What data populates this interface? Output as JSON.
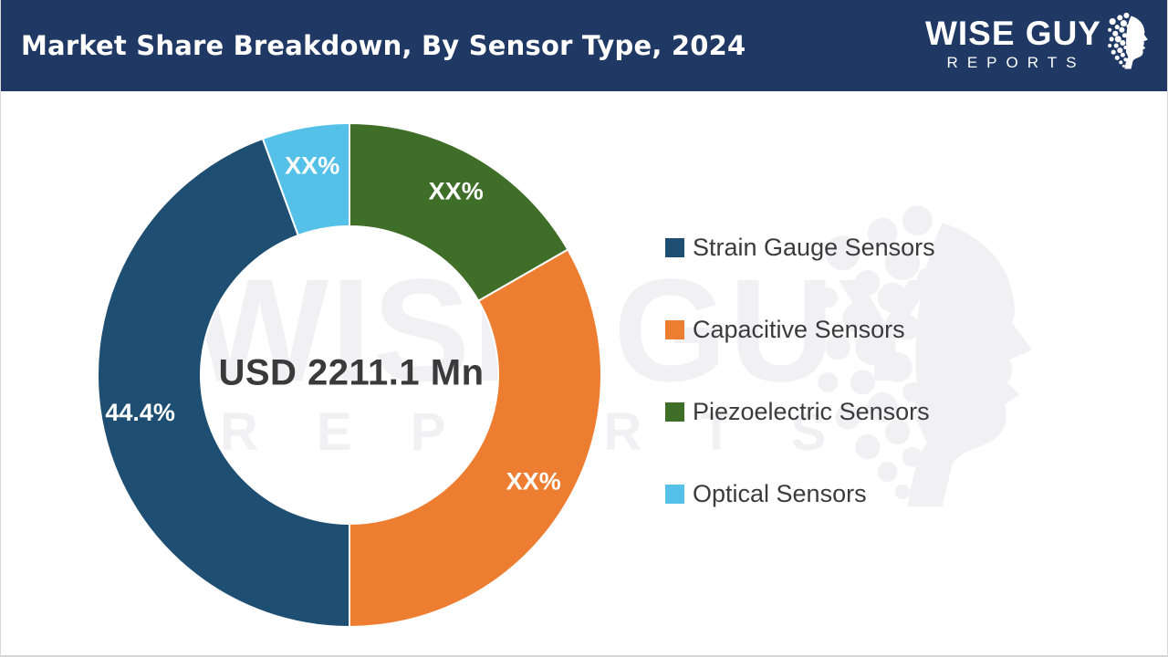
{
  "header": {
    "title": "Market Share Breakdown, By Sensor Type, 2024",
    "logo": {
      "line1": "WISE GUY",
      "line2": "REPORTS"
    }
  },
  "chart_data": {
    "type": "pie",
    "subtype": "donut",
    "title": "Market Share Breakdown, By Sensor Type, 2024",
    "center_label": "USD 2211.1 Mn",
    "start_angle": "12 o'clock",
    "direction": "clockwise",
    "inner_radius_ratio": 0.59,
    "segments": [
      {
        "label": "Piezoelectric Sensors",
        "display_value": "XX%",
        "percent": 16.7,
        "color": "#3F6E28"
      },
      {
        "label": "Capacitive Sensors",
        "display_value": "XX%",
        "percent": 33.3,
        "color": "#ED7D31"
      },
      {
        "label": "Strain Gauge Sensors",
        "display_value": "44.4%",
        "percent": 44.4,
        "color": "#1F4E73"
      },
      {
        "label": "Optical Sensors",
        "display_value": "XX%",
        "percent": 5.6,
        "color": "#56C1E8"
      }
    ]
  },
  "legend": {
    "items": [
      {
        "label": "Strain Gauge Sensors",
        "color": "#1F4E73"
      },
      {
        "label": "Capacitive Sensors",
        "color": "#ED7D31"
      },
      {
        "label": "Piezoelectric Sensors",
        "color": "#3F6E28"
      },
      {
        "label": "Optical Sensors",
        "color": "#56C1E8"
      }
    ]
  },
  "watermark": {
    "line1": "WISE GUY",
    "line2": "REPORTS"
  },
  "colors": {
    "header_bg": "#1f3864",
    "center_text": "#3a3a3a",
    "legend_text": "#3b3b3b",
    "watermark": "#f1f1f4",
    "separator": "#ffffff"
  }
}
